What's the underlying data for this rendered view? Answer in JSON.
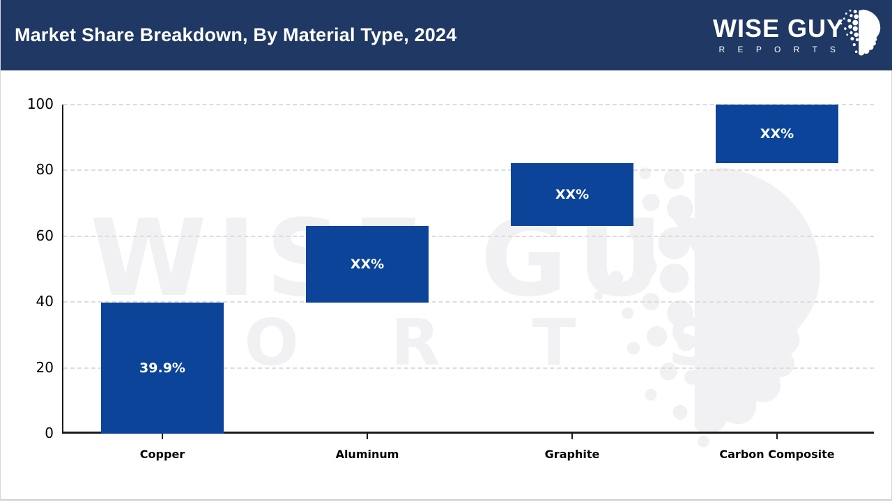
{
  "header": {
    "title": "Market Share Breakdown, By Material Type, 2024",
    "background": "#1f3864",
    "logo": {
      "line1": "WISE GUY",
      "line2": "R E P O R T S"
    }
  },
  "watermark": {
    "line1": "WISE GUY",
    "line2": "P O R T S"
  },
  "chart_data": {
    "type": "bar",
    "subtype": "waterfall",
    "title": "Market Share Breakdown, By Material Type, 2024",
    "categories": [
      "Copper",
      "Aluminum",
      "Graphite",
      "Carbon Composite"
    ],
    "segments": [
      {
        "category": "Copper",
        "start": 0,
        "end": 39.9,
        "label": "39.9%"
      },
      {
        "category": "Aluminum",
        "start": 39.9,
        "end": 63.2,
        "label": "XX%"
      },
      {
        "category": "Graphite",
        "start": 63.2,
        "end": 82.1,
        "label": "XX%"
      },
      {
        "category": "Carbon Composite",
        "start": 82.1,
        "end": 100,
        "label": "XX%"
      }
    ],
    "ylim": [
      0,
      100
    ],
    "yticks": [
      0,
      20,
      40,
      60,
      80,
      100
    ],
    "xlabel": "",
    "ylabel": "",
    "bar_color": "#0b4499",
    "grid": "dashed-horizontal",
    "legend": "none"
  }
}
